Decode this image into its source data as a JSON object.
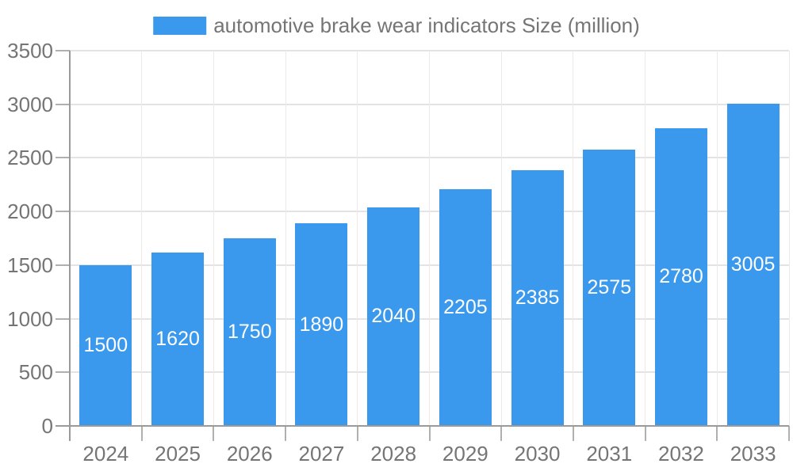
{
  "chart_data": {
    "type": "bar",
    "title": "",
    "legend": {
      "label": "automotive brake wear indicators Size (million)",
      "position": "top"
    },
    "categories": [
      "2024",
      "2025",
      "2026",
      "2027",
      "2028",
      "2029",
      "2030",
      "2031",
      "2032",
      "2033"
    ],
    "values": [
      1500,
      1620,
      1750,
      1890,
      2040,
      2205,
      2385,
      2575,
      2780,
      3005
    ],
    "xlabel": "",
    "ylabel": "",
    "ylim": [
      0,
      3500
    ],
    "yticks": [
      0,
      500,
      1000,
      1500,
      2000,
      2500,
      3000,
      3500
    ],
    "grid": true,
    "bar_value_labels_visible": true,
    "colors": {
      "bar": "#3A99EC",
      "bar_label": "#ffffff",
      "axis": "#9a9a9a",
      "tick": "#b0b0b0",
      "grid": "#e3e3e3",
      "grid_light": "#eaeaea",
      "text": "#757575"
    }
  }
}
